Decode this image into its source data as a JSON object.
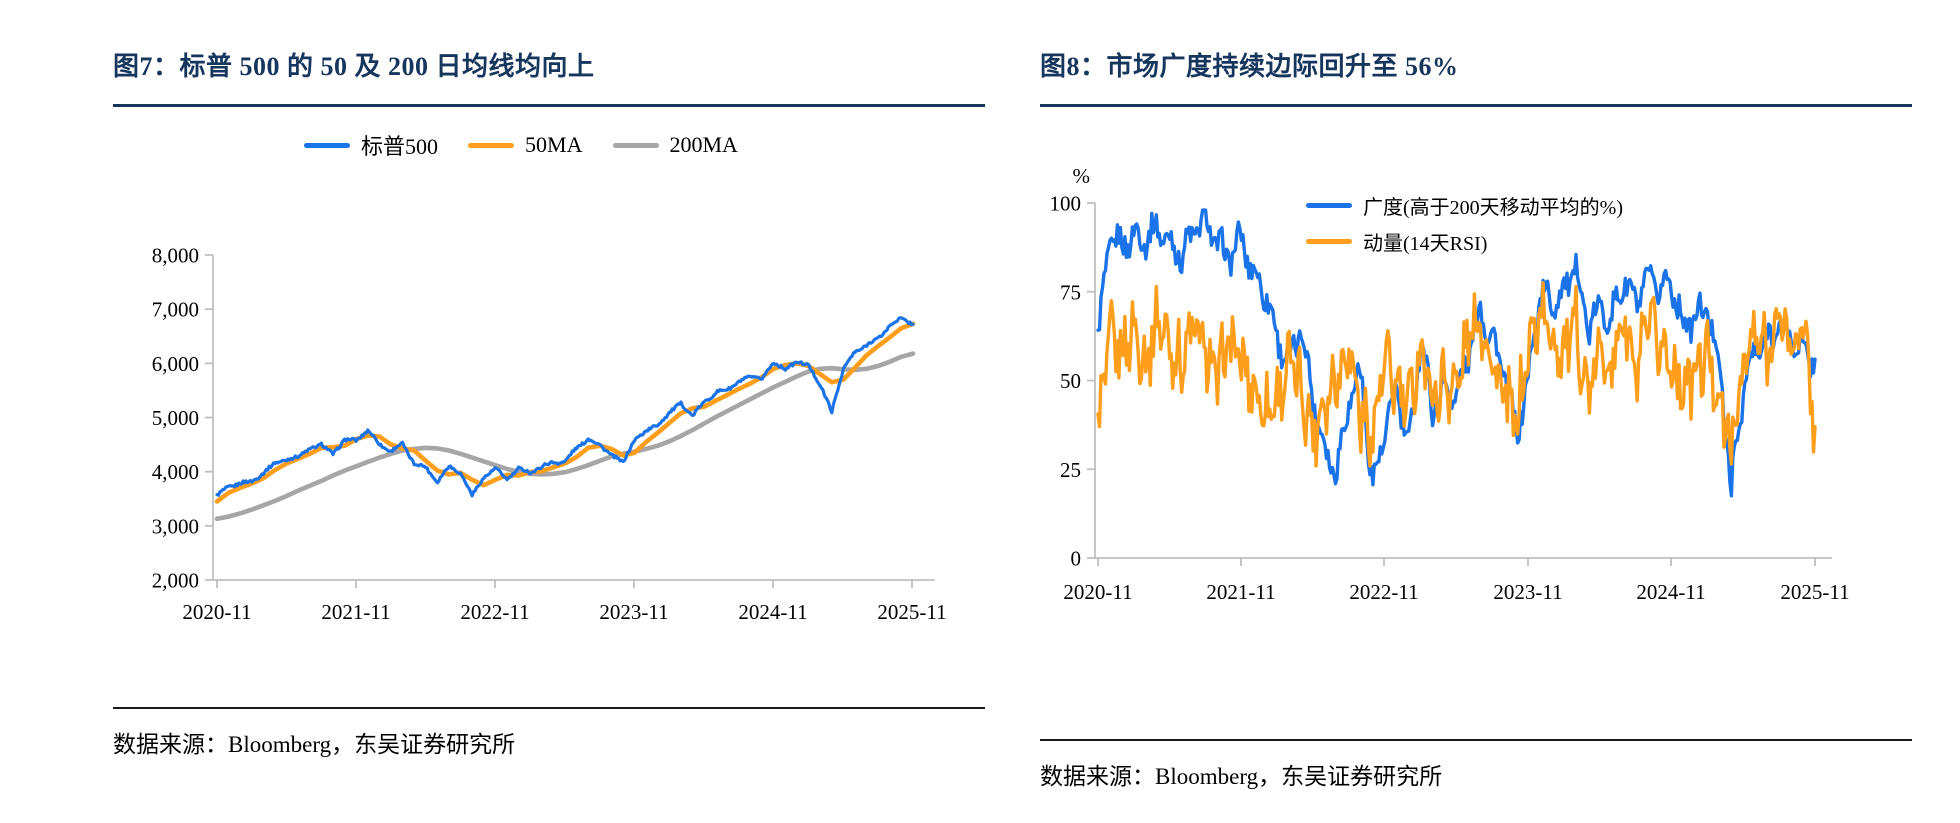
{
  "page": {
    "background": "#ffffff"
  },
  "figures": [
    {
      "id": "fig7",
      "title": "图7：标普 500 的 50 及 200 日均线均向上",
      "source": "数据来源：Bloomberg，东吴证券研究所",
      "accent_color": "#17365D",
      "chart_data": {
        "type": "line",
        "title": "标普 500 的 50 及 200 日均线均向上",
        "xlabel": "",
        "ylabel": "",
        "x_interval": "monthly",
        "x_start": "2020-11",
        "x_end": "2025-11",
        "n_points": 61,
        "xticks": [
          "2020-11",
          "2021-11",
          "2022-11",
          "2023-11",
          "2024-11",
          "2025-11"
        ],
        "yticks": [
          "2,000",
          "3,000",
          "4,000",
          "5,000",
          "6,000",
          "7,000",
          "8,000"
        ],
        "ylim": [
          2000,
          8000
        ],
        "grid": false,
        "legend_position": "top-center",
        "series": [
          {
            "name": "标普500",
            "color": "#1A73E8",
            "noisy": true,
            "values": [
              3560,
              3720,
              3780,
              3830,
              3960,
              4180,
              4200,
              4300,
              4400,
              4520,
              4310,
              4600,
              4570,
              4770,
              4510,
              4370,
              4530,
              4130,
              4100,
              3790,
              4130,
              3950,
              3590,
              3870,
              4080,
              3840,
              4070,
              3970,
              4100,
              4170,
              4180,
              4450,
              4590,
              4510,
              4290,
              4190,
              4570,
              4770,
              4850,
              5100,
              5250,
              5040,
              5280,
              5460,
              5520,
              5650,
              5760,
              5710,
              6030,
              5880,
              6040,
              5950,
              5610,
              5100,
              5910,
              6200,
              6340,
              6460,
              6690,
              6840,
              6720
            ]
          },
          {
            "name": "50MA",
            "color": "#FF9E1B",
            "noisy": false,
            "values": [
              3450,
              3610,
              3700,
              3780,
              3880,
              4030,
              4150,
              4240,
              4330,
              4440,
              4450,
              4480,
              4600,
              4670,
              4650,
              4500,
              4430,
              4390,
              4200,
              4020,
              3950,
              3980,
              3850,
              3750,
              3850,
              3940,
              3930,
              3990,
              4010,
              4080,
              4150,
              4270,
              4440,
              4480,
              4420,
              4300,
              4350,
              4550,
              4720,
              4900,
              5080,
              5170,
              5200,
              5310,
              5420,
              5530,
              5630,
              5750,
              5900,
              5970,
              6000,
              5950,
              5800,
              5650,
              5700,
              5920,
              6150,
              6320,
              6480,
              6650,
              6730
            ]
          },
          {
            "name": "200MA",
            "color": "#A6A6A6",
            "noisy": false,
            "values": [
              3130,
              3170,
              3230,
              3300,
              3380,
              3460,
              3550,
              3650,
              3740,
              3830,
              3930,
              4020,
              4100,
              4180,
              4260,
              4330,
              4390,
              4420,
              4440,
              4430,
              4390,
              4330,
              4260,
              4190,
              4120,
              4050,
              4000,
              3960,
              3950,
              3960,
              3990,
              4050,
              4120,
              4200,
              4280,
              4330,
              4370,
              4420,
              4480,
              4560,
              4660,
              4770,
              4890,
              5010,
              5120,
              5230,
              5340,
              5450,
              5560,
              5660,
              5760,
              5850,
              5900,
              5910,
              5890,
              5880,
              5900,
              5950,
              6030,
              6120,
              6180
            ]
          }
        ]
      }
    },
    {
      "id": "fig8",
      "title": "图8：市场广度持续边际回升至 56%",
      "source": "数据来源：Bloomberg，东吴证券研究所",
      "accent_color": "#17365D",
      "chart_data": {
        "type": "line",
        "title": "市场广度持续边际回升至 56%",
        "xlabel": "",
        "ylabel": "%",
        "x_interval": "monthly",
        "x_start": "2020-11",
        "x_end": "2025-11",
        "n_points": 61,
        "xticks": [
          "2020-11",
          "2021-11",
          "2022-11",
          "2023-11",
          "2024-11",
          "2025-11"
        ],
        "yticks": [
          "0",
          "25",
          "50",
          "75",
          "100"
        ],
        "ylim": [
          0,
          100
        ],
        "grid": false,
        "legend_position": "top-right",
        "latest_breadth_pct": 56,
        "series": [
          {
            "name": "广度(高于200天移动平均的%)",
            "color": "#1A73E8",
            "noisy": true,
            "values": [
              62,
              90,
              88,
              91,
              90,
              93,
              89,
              85,
              92,
              96,
              88,
              85,
              90,
              80,
              75,
              62,
              55,
              65,
              45,
              30,
              25,
              45,
              52,
              20,
              35,
              48,
              30,
              62,
              42,
              48,
              45,
              58,
              70,
              62,
              52,
              35,
              50,
              75,
              72,
              75,
              82,
              65,
              70,
              68,
              78,
              72,
              78,
              76,
              78,
              65,
              68,
              70,
              55,
              19,
              48,
              58,
              62,
              65,
              62,
              58,
              56
            ]
          },
          {
            "name": "动量(14天RSI)",
            "color": "#FF9E1B",
            "noisy": true,
            "values": [
              36,
              62,
              58,
              65,
              55,
              68,
              60,
              55,
              65,
              58,
              50,
              62,
              55,
              48,
              42,
              45,
              55,
              48,
              35,
              45,
              52,
              60,
              40,
              35,
              55,
              48,
              42,
              60,
              45,
              50,
              48,
              62,
              68,
              55,
              45,
              38,
              58,
              70,
              62,
              58,
              65,
              45,
              58,
              55,
              68,
              50,
              65,
              60,
              55,
              48,
              52,
              58,
              45,
              30,
              55,
              62,
              58,
              68,
              60,
              65,
              37
            ]
          }
        ]
      }
    }
  ]
}
